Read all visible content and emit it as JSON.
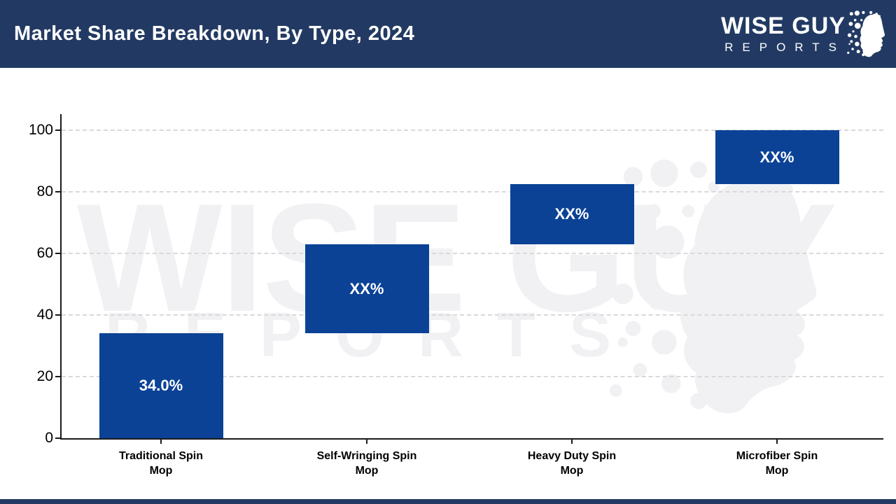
{
  "header": {
    "title": "Market Share Breakdown, By Type, 2024",
    "logo": {
      "line1": "WISE GUY",
      "line2": "REPORTS"
    }
  },
  "watermark": {
    "line1": "WISE GUY",
    "line2": "REPORTS"
  },
  "chart_data": {
    "type": "bar",
    "subtype": "floating-waterfall",
    "title": "Market Share Breakdown, By Type, 2024",
    "categories": [
      "Traditional Spin\nMop",
      "Self-Wringing Spin\nMop",
      "Heavy Duty Spin\nMop",
      "Microfiber Spin\nMop"
    ],
    "segments": [
      {
        "start": 0,
        "end": 34,
        "label": "34.0%"
      },
      {
        "start": 34,
        "end": 63,
        "label": "XX%"
      },
      {
        "start": 63,
        "end": 82.5,
        "label": "XX%"
      },
      {
        "start": 82.5,
        "end": 100,
        "label": "XX%"
      }
    ],
    "yticks": [
      0,
      20,
      40,
      60,
      80,
      100
    ],
    "ylim": [
      0,
      105
    ],
    "xlabel": "",
    "ylabel": "",
    "grid": "horizontal-dashed",
    "legend": "none"
  },
  "colors": {
    "header_bg": "#223a63",
    "footer_bg": "#223a63",
    "bar": "#0b4296",
    "bar_label": "#ffffff",
    "gridline": "#d9d9d9",
    "axis": "#1a1a1a",
    "watermark": "#f1f1f4"
  }
}
